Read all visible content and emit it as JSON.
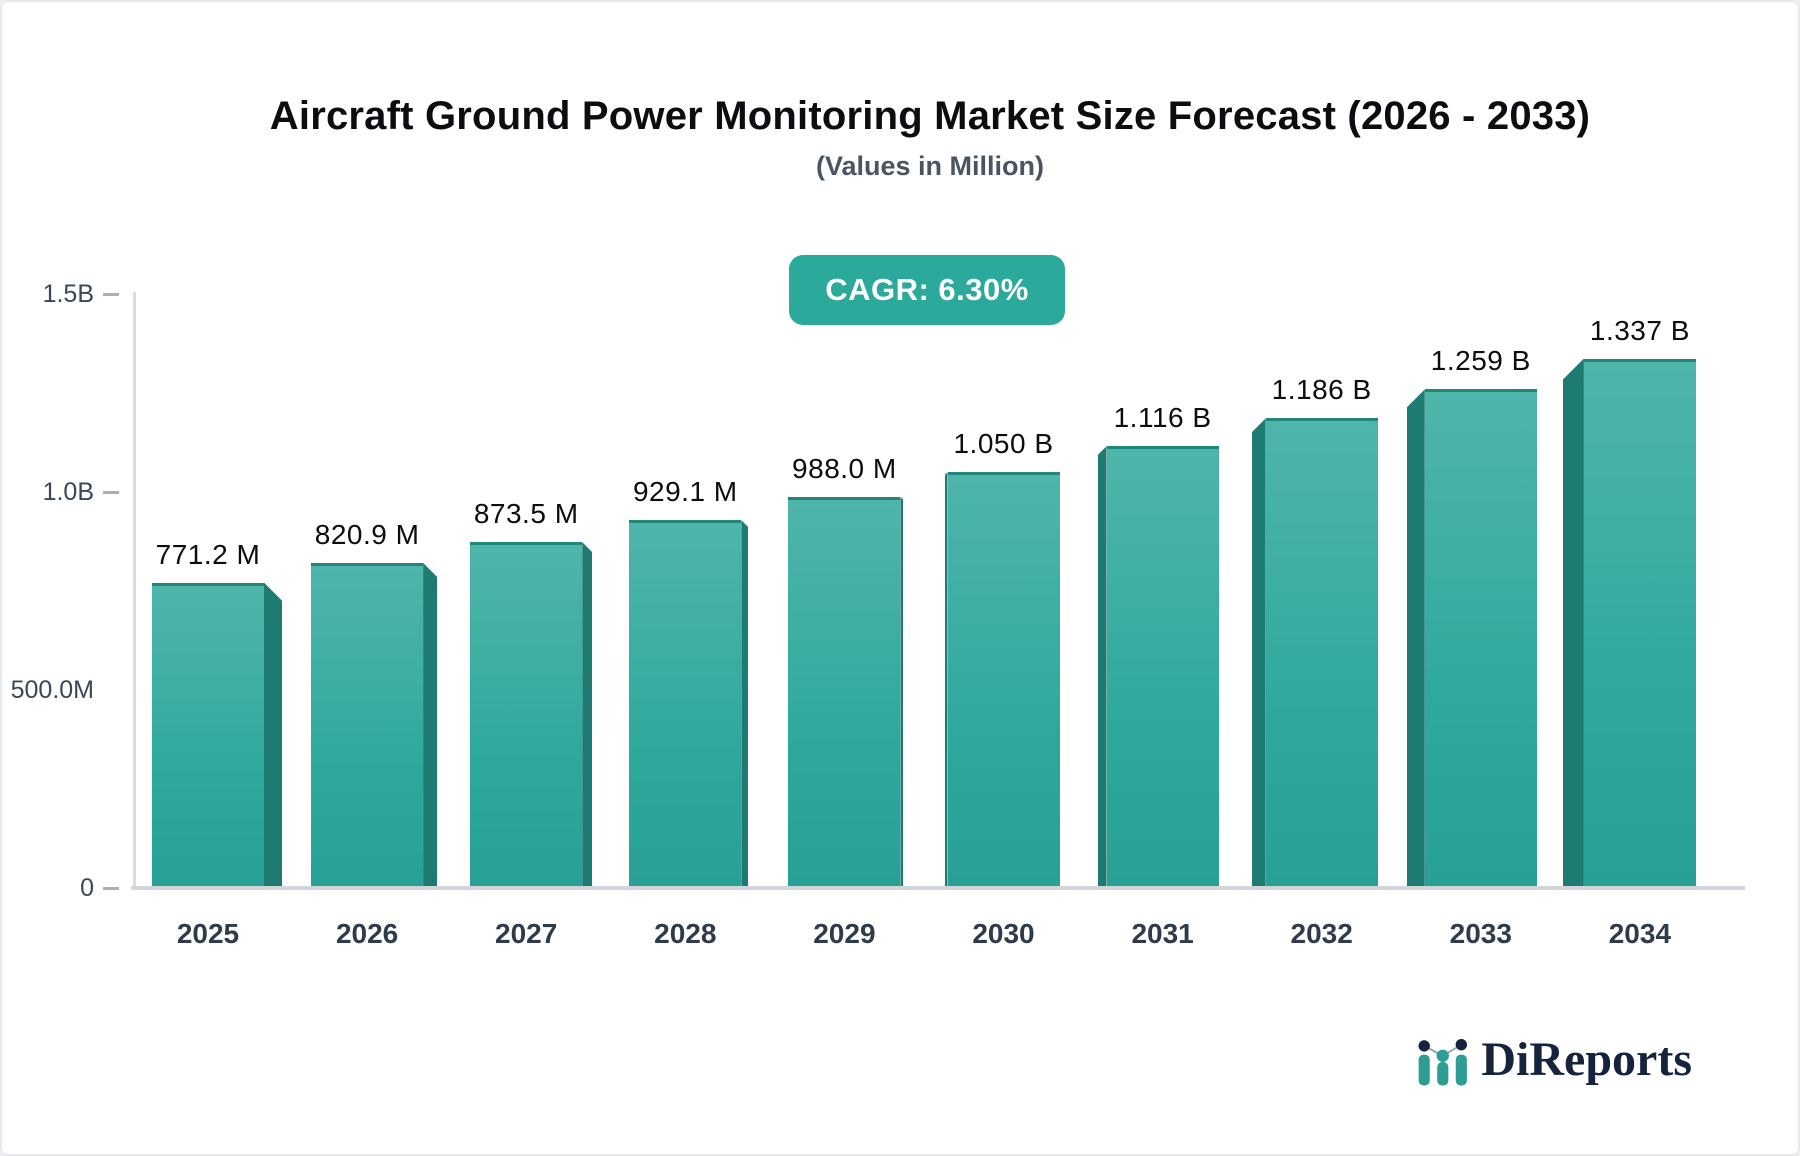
{
  "title": "Aircraft Ground Power Monitoring Market Size Forecast (2026 - 2033)",
  "subtitle": "(Values in Million)",
  "badge": {
    "label": "CAGR: 6.30%",
    "bg_color": "#2BA99B",
    "text_color": "#FFFFFF"
  },
  "logo": {
    "text": "DiReports",
    "icon": "mini-bar-line-chart-icon",
    "text_color": "#16233C",
    "icon_bar_color": "#2E9D94",
    "icon_dot_colors": [
      "#16233C",
      "#2E9D94",
      "#16233C"
    ]
  },
  "chart_data": {
    "type": "bar",
    "title": "Aircraft Ground Power Monitoring Market Size Forecast (2026 - 2033)",
    "subtitle": "(Values in Million)",
    "cagr_label": "CAGR: 6.30%",
    "categories": [
      "2025",
      "2026",
      "2027",
      "2028",
      "2029",
      "2030",
      "2031",
      "2032",
      "2033",
      "2034"
    ],
    "values_in_millions": [
      771.2,
      820.9,
      873.5,
      929.1,
      988.0,
      1050,
      1116,
      1186,
      1259,
      1337
    ],
    "value_labels": [
      "771.2 M",
      "820.9 M",
      "873.5 M",
      "929.1 M",
      "988.0 M",
      "1.050 B",
      "1.116 B",
      "1.186 B",
      "1.259 B",
      "1.337 B"
    ],
    "xlabel": "",
    "ylabel": "",
    "ylim_millions": [
      0,
      1500
    ],
    "y_axis_ticks": [
      {
        "label": "1.5B",
        "value_millions": 1500,
        "has_tick_mark": true
      },
      {
        "label": "1.0B",
        "value_millions": 1000,
        "has_tick_mark": true
      },
      {
        "label": "500.0M",
        "value_millions": 500,
        "has_tick_mark": false
      },
      {
        "label": "0",
        "value_millions": 0,
        "has_tick_mark": true
      }
    ],
    "grid": "off",
    "legend": "none",
    "bar_style_3d": true,
    "colors": {
      "bar_front_top": "#4FB5AB",
      "bar_front_bottom": "#28A096",
      "bar_top_edge": "#1F877C",
      "bar_side": "#1E7B71",
      "axis_line": "#D8DBDF",
      "tick_mark": "#A9AFB8",
      "axis_label": "#3A4757",
      "category_label": "#2F3B4B",
      "value_label": "#0B0D11"
    }
  }
}
